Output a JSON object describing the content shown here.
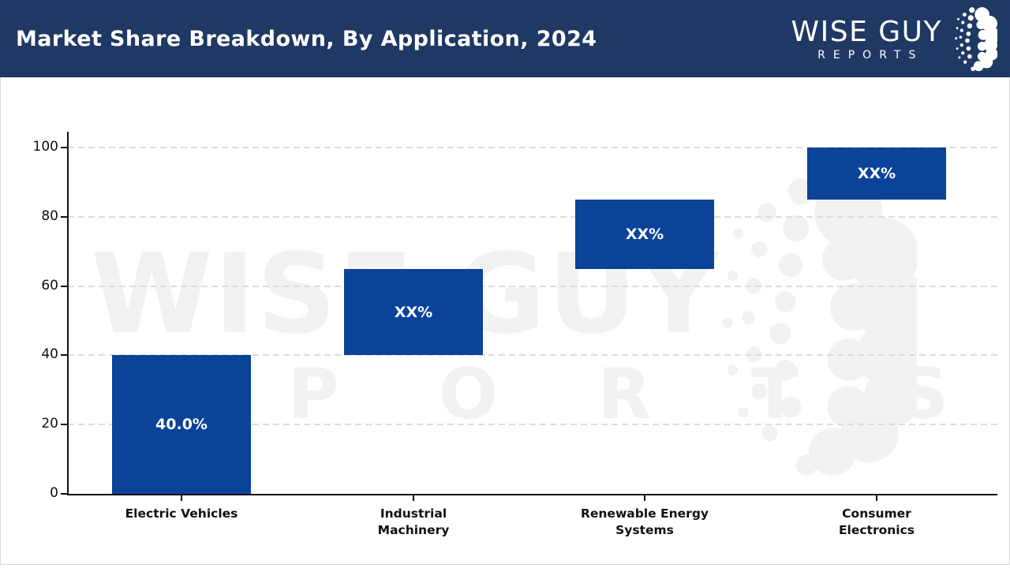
{
  "header": {
    "title": "Market Share Breakdown, By Application, 2024",
    "logo_line1": "WISE GUY",
    "logo_line2": "REPORTS"
  },
  "watermark": {
    "line1": "WISE GUY",
    "line2": "P O R T S"
  },
  "chart_data": {
    "type": "bar",
    "variant": "floating-waterfall",
    "title": "Market Share Breakdown, By Application, 2024",
    "categories": [
      {
        "label": "Electric Vehicles",
        "lines": [
          "Electric Vehicles"
        ]
      },
      {
        "label": "Industrial Machinery",
        "lines": [
          "Industrial",
          "Machinery"
        ]
      },
      {
        "label": "Renewable Energy Systems",
        "lines": [
          "Renewable Energy",
          "Systems"
        ]
      },
      {
        "label": "Consumer Electronics",
        "lines": [
          "Consumer",
          "Electronics"
        ]
      }
    ],
    "segments": [
      {
        "start": 0,
        "end": 40,
        "label": "40.0%"
      },
      {
        "start": 40,
        "end": 65,
        "label": "XX%"
      },
      {
        "start": 65,
        "end": 85,
        "label": "XX%"
      },
      {
        "start": 85,
        "end": 100,
        "label": "XX%"
      }
    ],
    "yticks": [
      0,
      20,
      40,
      60,
      80,
      100
    ],
    "ylim": [
      0,
      105
    ],
    "grid": {
      "orientation": "horizontal",
      "style": "dashed",
      "color": "#dcdcdc"
    },
    "legend": "none",
    "bar_color": "#0b4398",
    "bar_label_color": "#ffffff",
    "axis_color": "#111111"
  },
  "colors": {
    "header_bg": "#1f3864",
    "logo_text": "#ffffff",
    "watermark": "#f2f2f2",
    "frame_border": "#d9d9d9",
    "background": "#ffffff"
  }
}
